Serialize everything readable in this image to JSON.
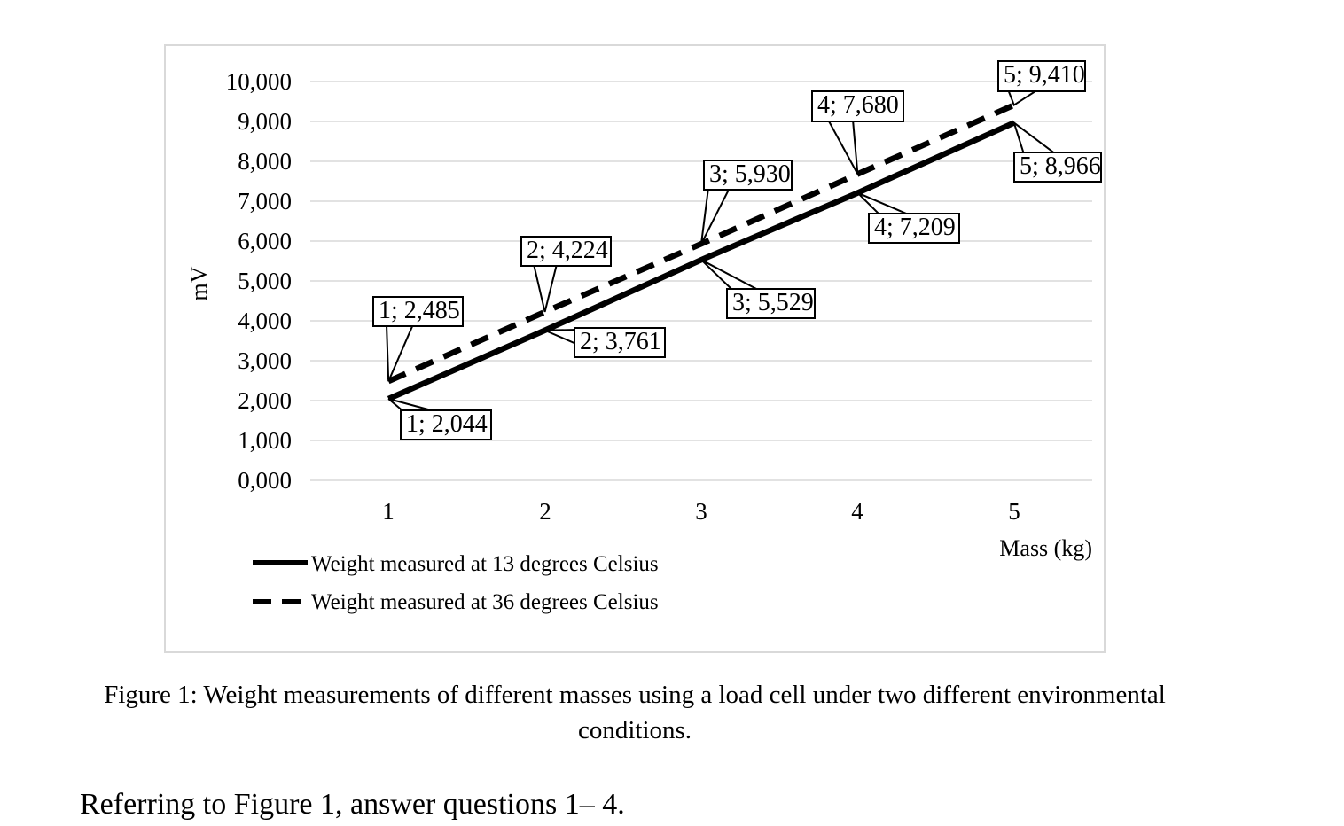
{
  "figure": {
    "caption_lines": [
      "Figure 1: Weight measurements of different masses using a load cell under two different environmental",
      "conditions."
    ],
    "instruction": "Referring to Figure 1, answer questions 1– 4."
  },
  "chart": {
    "y_axis_title": "mV",
    "x_axis_title": "Mass (kg)",
    "y_ticks": [
      "10,000",
      "9,000",
      "8,000",
      "7,000",
      "6,000",
      "5,000",
      "4,000",
      "3,000",
      "2,000",
      "1,000",
      "0,000"
    ],
    "x_ticks": [
      "1",
      "2",
      "3",
      "4",
      "5"
    ]
  },
  "legend": {
    "items": [
      {
        "label": "Weight measured at 13 degrees Celsius",
        "style": "solid"
      },
      {
        "label": "Weight measured at 36 degrees Celsius",
        "style": "dashed"
      }
    ]
  },
  "colors": {
    "series": "#000000",
    "grid": "#d9d9d9",
    "chart_border": "#d9d9d9",
    "label_box_border": "#000000",
    "label_box_fill": "#ffffff"
  },
  "chart_data": {
    "type": "line",
    "x": [
      1,
      2,
      3,
      4,
      5
    ],
    "series": [
      {
        "name": "Weight measured at 13 degrees Celsius",
        "style": "solid",
        "values": [
          2044,
          3761,
          5529,
          7209,
          8966
        ],
        "labels": [
          "1; 2,044",
          "2; 3,761",
          "3; 5,529",
          "4; 7,209",
          "5; 8,966"
        ]
      },
      {
        "name": "Weight measured at 36 degrees Celsius",
        "style": "dashed",
        "values": [
          2485,
          4224,
          5930,
          7680,
          9410
        ],
        "labels": [
          "1; 2,485",
          "2; 4,224",
          "3; 5,930",
          "4; 7,680",
          "5; 9,410"
        ]
      }
    ],
    "xlabel": "Mass (kg)",
    "ylabel": "mV",
    "ylim": [
      0,
      10000
    ],
    "y_step": 1000,
    "grid": true,
    "legend_position": "bottom-left",
    "data_label_style": "callout"
  }
}
